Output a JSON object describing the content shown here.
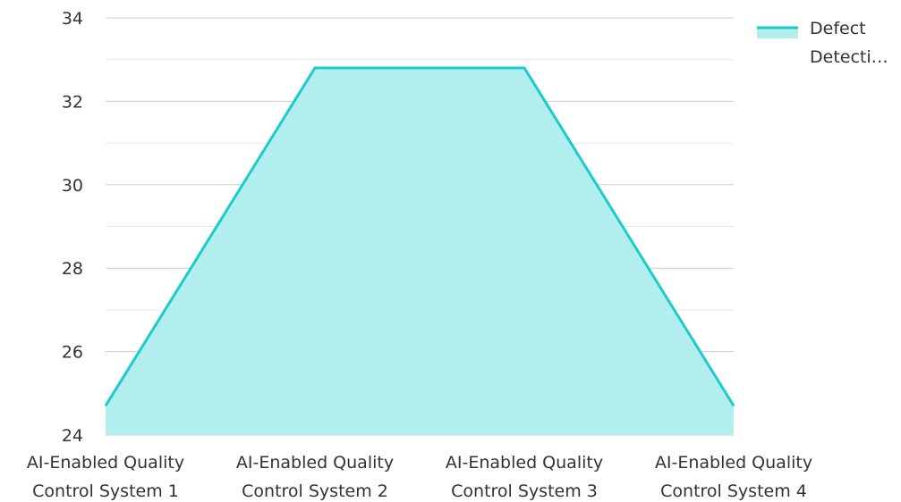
{
  "chart_data": {
    "type": "area",
    "categories": [
      [
        "AI-Enabled Quality",
        "Control System 1"
      ],
      [
        "AI-Enabled Quality",
        "Control System 2"
      ],
      [
        "AI-Enabled Quality",
        "Control System 3"
      ],
      [
        "AI-Enabled Quality",
        "Control System 4"
      ]
    ],
    "series": [
      {
        "name": "Defect Detecti…",
        "legend_lines": [
          "Defect",
          "Detecti…"
        ],
        "values": [
          24.7,
          32.8,
          32.8,
          24.7
        ]
      }
    ],
    "ylim": [
      24,
      34
    ],
    "yticks": [
      "24",
      "26",
      "28",
      "30",
      "32",
      "34"
    ],
    "grid": true,
    "legend_position": "top-right",
    "colors": {
      "line": "#1ccbcb",
      "fill": "#b2eeee",
      "grid": "#cccccc",
      "minor_grid": "#e6e6e6"
    }
  }
}
